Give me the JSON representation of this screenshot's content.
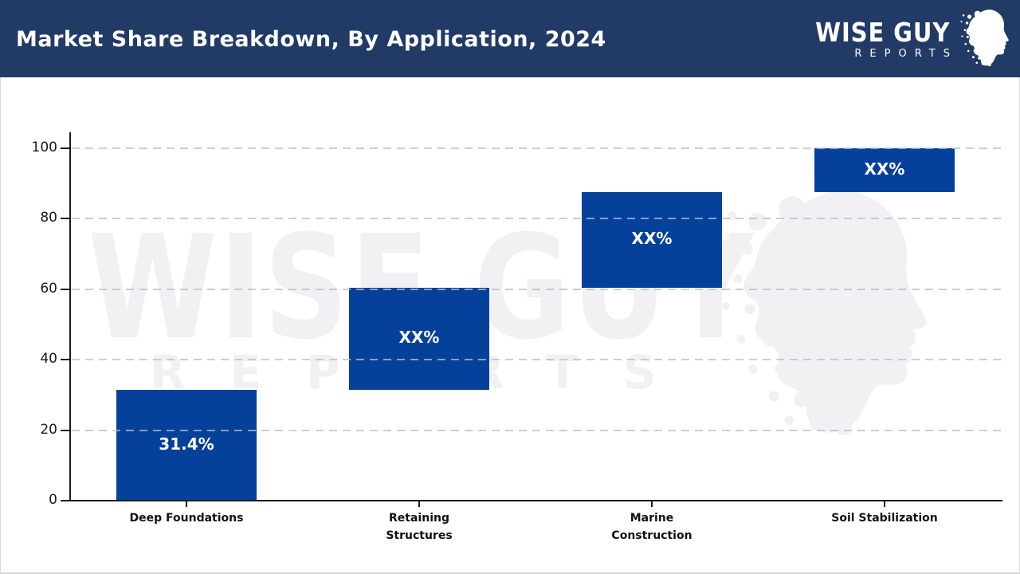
{
  "header": {
    "title": "Market Share Breakdown, By Application, 2024",
    "bg_color": "#213a66",
    "logo": {
      "brand_line1": "WISE GUY",
      "brand_line2": "REPORTS",
      "icon": "dotted-head-profile-icon"
    }
  },
  "watermark": {
    "line1": "WISE GUY",
    "line2": "REPORTS",
    "icon": "dotted-head-profile-icon",
    "color": "#f1f1f4"
  },
  "chart_data": {
    "type": "bar",
    "variant": "waterfall",
    "title": "Market Share Breakdown, By Application, 2024",
    "categories": [
      "Deep Foundations",
      "Retaining Structures",
      "Marine Construction",
      "Soil Stabilization"
    ],
    "category_label_lines": [
      [
        "Deep Foundations"
      ],
      [
        "Retaining",
        "Structures"
      ],
      [
        "Marine",
        "Construction"
      ],
      [
        "Soil Stabilization"
      ]
    ],
    "segments": [
      {
        "category": "Deep Foundations",
        "start": 0,
        "end": 31.4,
        "label": "31.4%"
      },
      {
        "category": "Retaining Structures",
        "start": 31.4,
        "end": 60.5,
        "label": "XX%"
      },
      {
        "category": "Marine Construction",
        "start": 60.5,
        "end": 87.5,
        "label": "XX%"
      },
      {
        "category": "Soil Stabilization",
        "start": 87.5,
        "end": 100,
        "label": "XX%"
      }
    ],
    "ylim": [
      0,
      100
    ],
    "yticks": [
      0,
      20,
      40,
      60,
      80,
      100
    ],
    "grid": {
      "axis": "y",
      "style": "dashed"
    },
    "legend": null,
    "bar_color": "#05419b",
    "bar_label_color": "#ffffff",
    "axis_color": "#1b1b1b"
  }
}
